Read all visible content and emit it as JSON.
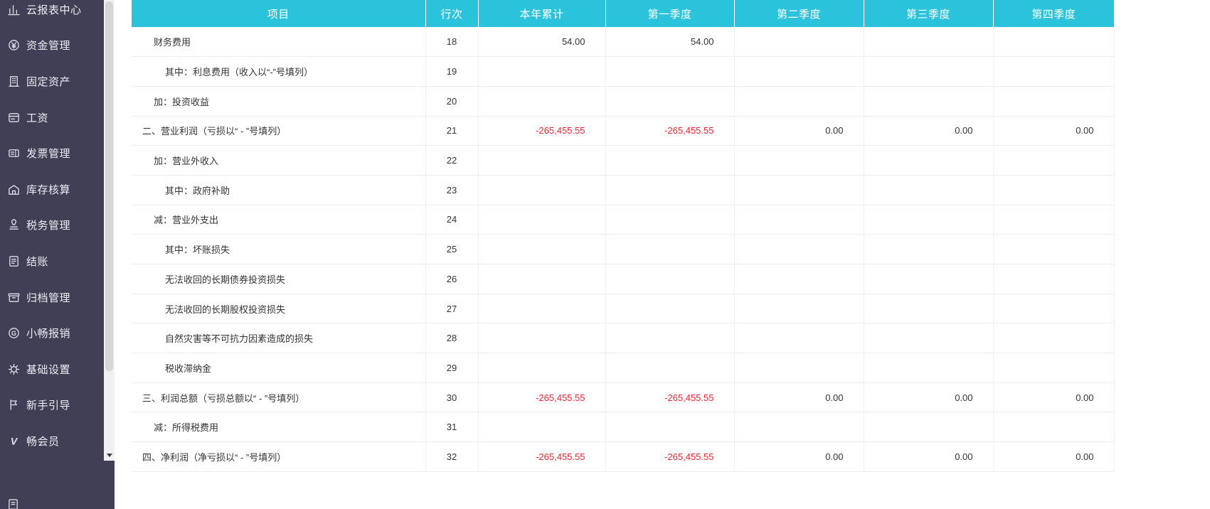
{
  "colors": {
    "accent": "#2BC3DC",
    "negative": "#F5222D",
    "sidebar_bg": "#413F55",
    "header_text": "#FFFFFF"
  },
  "sidebar": {
    "items": [
      {
        "id": "cloud-report-center",
        "label": "云报表中心",
        "icon": "chart"
      },
      {
        "id": "funds-management",
        "label": "资金管理",
        "icon": "yen"
      },
      {
        "id": "fixed-assets",
        "label": "固定资产",
        "icon": "building"
      },
      {
        "id": "salary",
        "label": "工资",
        "icon": "card"
      },
      {
        "id": "invoice-management",
        "label": "发票管理",
        "icon": "ticket"
      },
      {
        "id": "inventory-accounting",
        "label": "库存核算",
        "icon": "home"
      },
      {
        "id": "tax-management",
        "label": "税务管理",
        "icon": "stamp"
      },
      {
        "id": "closing",
        "label": "结账",
        "icon": "book"
      },
      {
        "id": "archive-management",
        "label": "归档管理",
        "icon": "archive"
      },
      {
        "id": "xiaochang-expense",
        "label": "小畅报销",
        "icon": "gcircle"
      },
      {
        "id": "basic-settings",
        "label": "基础设置",
        "icon": "gear"
      },
      {
        "id": "novice-guide",
        "label": "新手引导",
        "icon": "flag"
      },
      {
        "id": "chang-member",
        "label": "畅会员",
        "icon": "vbadge"
      }
    ]
  },
  "table": {
    "columns": [
      {
        "key": "item",
        "label": "项目"
      },
      {
        "key": "line",
        "label": "行次"
      },
      {
        "key": "ytd",
        "label": "本年累计"
      },
      {
        "key": "q1",
        "label": "第一季度"
      },
      {
        "key": "q2",
        "label": "第二季度"
      },
      {
        "key": "q3",
        "label": "第三季度"
      },
      {
        "key": "q4",
        "label": "第四季度"
      }
    ],
    "rows": [
      {
        "item": "财务费用",
        "indent": 1,
        "line": "18",
        "ytd": "54.00",
        "q1": "54.00",
        "q2": "",
        "q3": "",
        "q4": ""
      },
      {
        "item": "其中：利息费用（收入以“-”号填列）",
        "indent": 2,
        "line": "19",
        "ytd": "",
        "q1": "",
        "q2": "",
        "q3": "",
        "q4": ""
      },
      {
        "item": "加：投资收益",
        "indent": 1,
        "line": "20",
        "ytd": "",
        "q1": "",
        "q2": "",
        "q3": "",
        "q4": ""
      },
      {
        "item": "二、营业利润（亏损以“ - ”号填列）",
        "indent": 0,
        "line": "21",
        "ytd": "-265,455.55",
        "q1": "-265,455.55",
        "q2": "0.00",
        "q3": "0.00",
        "q4": "0.00"
      },
      {
        "item": "加：营业外收入",
        "indent": 1,
        "line": "22",
        "ytd": "",
        "q1": "",
        "q2": "",
        "q3": "",
        "q4": ""
      },
      {
        "item": "其中：政府补助",
        "indent": 2,
        "line": "23",
        "ytd": "",
        "q1": "",
        "q2": "",
        "q3": "",
        "q4": ""
      },
      {
        "item": "减：营业外支出",
        "indent": 1,
        "line": "24",
        "ytd": "",
        "q1": "",
        "q2": "",
        "q3": "",
        "q4": ""
      },
      {
        "item": "其中：坏账损失",
        "indent": 2,
        "line": "25",
        "ytd": "",
        "q1": "",
        "q2": "",
        "q3": "",
        "q4": ""
      },
      {
        "item": "无法收回的长期债券投资损失",
        "indent": 2,
        "line": "26",
        "ytd": "",
        "q1": "",
        "q2": "",
        "q3": "",
        "q4": ""
      },
      {
        "item": "无法收回的长期股权投资损失",
        "indent": 2,
        "line": "27",
        "ytd": "",
        "q1": "",
        "q2": "",
        "q3": "",
        "q4": ""
      },
      {
        "item": "自然灾害等不可抗力因素造成的损失",
        "indent": 2,
        "line": "28",
        "ytd": "",
        "q1": "",
        "q2": "",
        "q3": "",
        "q4": ""
      },
      {
        "item": "税收滞纳金",
        "indent": 2,
        "line": "29",
        "ytd": "",
        "q1": "",
        "q2": "",
        "q3": "",
        "q4": ""
      },
      {
        "item": "三、利润总额（亏损总额以“ - ”号填列）",
        "indent": 0,
        "line": "30",
        "ytd": "-265,455.55",
        "q1": "-265,455.55",
        "q2": "0.00",
        "q3": "0.00",
        "q4": "0.00"
      },
      {
        "item": "减：所得税费用",
        "indent": 1,
        "line": "31",
        "ytd": "",
        "q1": "",
        "q2": "",
        "q3": "",
        "q4": ""
      },
      {
        "item": "四、净利润（净亏损以“ - ”号填列）",
        "indent": 0,
        "line": "32",
        "ytd": "-265,455.55",
        "q1": "-265,455.55",
        "q2": "0.00",
        "q3": "0.00",
        "q4": "0.00"
      }
    ]
  }
}
